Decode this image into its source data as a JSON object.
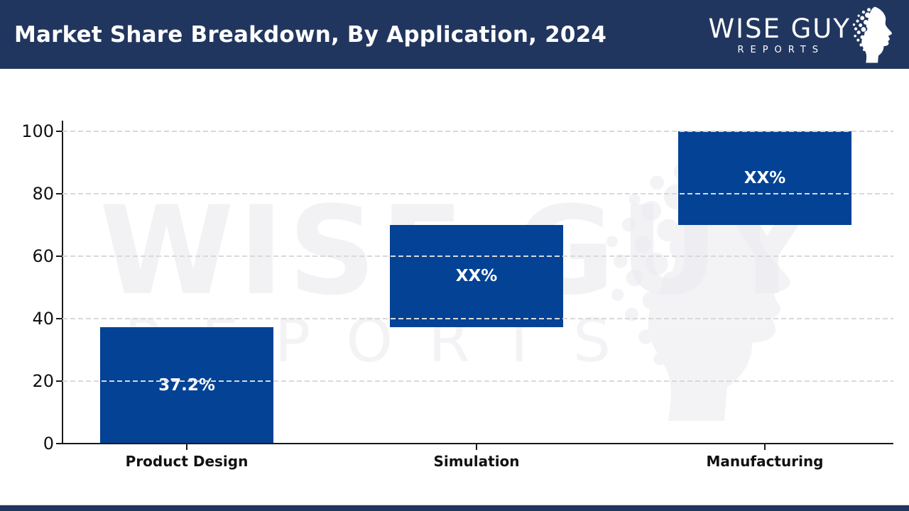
{
  "header": {
    "title": "Market Share Breakdown, By Application, 2024",
    "logo": {
      "line1": "WISE GUY",
      "line2": "REPORTS"
    }
  },
  "watermark": {
    "line1": "WISE GUY",
    "line2": "REPORTS"
  },
  "chart_data": {
    "type": "bar",
    "subtype": "waterfall-floating-bars",
    "title": "Market Share Breakdown, By Application, 2024",
    "categories": [
      "Product Design",
      "Simulation",
      "Manufacturing"
    ],
    "segments": [
      {
        "category": "Product Design",
        "start": 0,
        "end": 37.2,
        "label": "37.2%"
      },
      {
        "category": "Simulation",
        "start": 37.2,
        "end": 70,
        "label": "XX%"
      },
      {
        "category": "Manufacturing",
        "start": 70,
        "end": 100,
        "label": "XX%"
      }
    ],
    "xlabel": "",
    "ylabel": "",
    "ylim": [
      0,
      100
    ],
    "yticks": [
      0,
      20,
      40,
      60,
      80,
      100
    ],
    "grid": "horizontal dashed, drawn over bars",
    "legend": "none",
    "bar_color": "#034294",
    "bar_label_color": "#ffffff"
  },
  "colors": {
    "header_bg": "#21365f",
    "footer_bg": "#21365f",
    "bar": "#034294",
    "grid": "#d9d9d9",
    "axis": "#1a1a1a",
    "watermark": "#f2f2f5"
  }
}
